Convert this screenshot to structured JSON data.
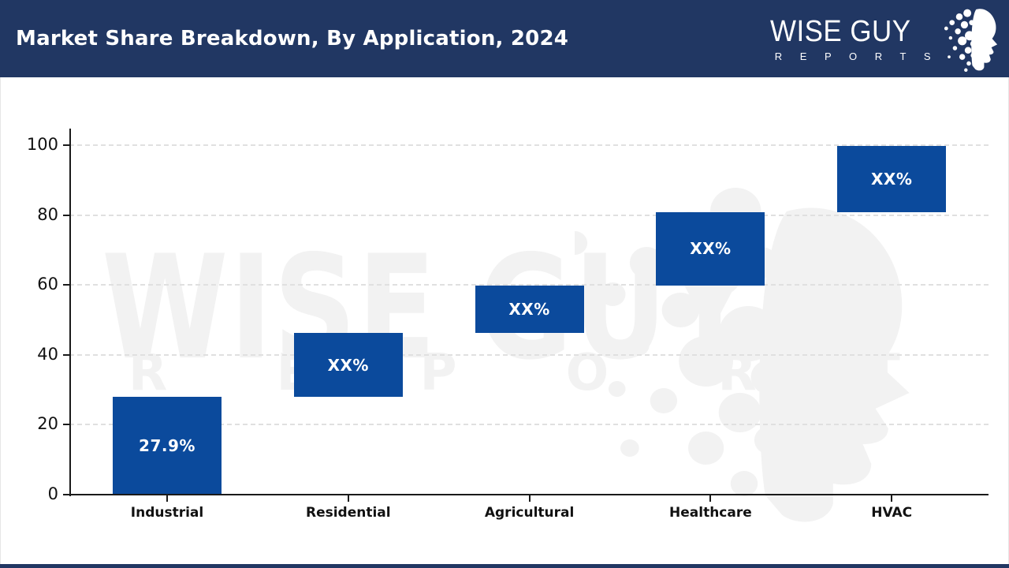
{
  "header": {
    "title": "Market Share Breakdown, By Application, 2024",
    "logo": {
      "name": "WISE GUY",
      "subtext": "R E P O R T S"
    }
  },
  "watermark": {
    "line1": "WISE GUY",
    "line2": "R E P O R T S"
  },
  "colors": {
    "navy": "#213763",
    "bar_blue": "#0b4a9c",
    "gridline": "#e0e0e0",
    "axis": "#1a1a1a",
    "bar_label": "#ffffff",
    "watermark": "#f2f2f2"
  },
  "chart_data": {
    "type": "bar",
    "subtype": "floating-waterfall",
    "title": "Market Share Breakdown, By Application, 2024",
    "xlabel": "",
    "ylabel": "",
    "ylim": [
      0,
      105
    ],
    "yticks": [
      0,
      20,
      40,
      60,
      80,
      100
    ],
    "grid": "horizontal-dashed",
    "legend": "none",
    "categories": [
      "Industrial",
      "Residential",
      "Agricultural",
      "Healthcare",
      "HVAC"
    ],
    "bars": [
      {
        "category": "Industrial",
        "start": 0,
        "end": 27.9,
        "label": "27.9%"
      },
      {
        "category": "Residential",
        "start": 27.9,
        "end": 46.2,
        "label": "XX%"
      },
      {
        "category": "Agricultural",
        "start": 46.2,
        "end": 59.8,
        "label": "XX%"
      },
      {
        "category": "Healthcare",
        "start": 59.8,
        "end": 80.9,
        "label": "XX%"
      },
      {
        "category": "HVAC",
        "start": 80.9,
        "end": 99.8,
        "label": "XX%"
      }
    ]
  }
}
